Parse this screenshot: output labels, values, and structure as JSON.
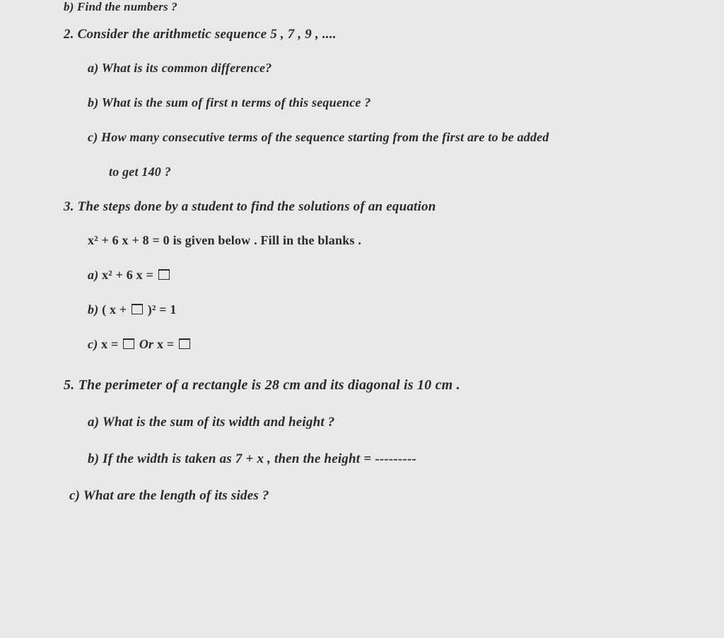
{
  "font_color": "#2a2a2a",
  "background_color": "#e8e8e8",
  "truncated_top": "b) Find the numbers ?",
  "q2": {
    "stem": "2. Consider the arithmetic sequence   5 , 7 , 9 , ....",
    "a": "a) What is its common difference?",
    "b": "b) What is the sum of first   n   terms of this sequence  ?",
    "c": "c) How many consecutive terms of the sequence  starting from the first  are to be added",
    "c_cont": "to get     140   ?"
  },
  "q3": {
    "stem": "3. The steps  done by a student to find the solutions of an equation",
    "eqn": "x² + 6 x + 8 = 0   is given below  . Fill in  the blanks .",
    "a_label": "a)   ",
    "a_expr_left": "x² + 6 x = ",
    "b_label": "b)    ",
    "b_expr_left": "( x + ",
    "b_expr_right": " )² = 1",
    "c_label": "c)   ",
    "c_x_eq": "x = ",
    "c_or": "    Or    "
  },
  "q5": {
    "stem": "5. The perimeter of a rectangle is  28 cm and its diagonal is 10 cm  .",
    "a": "a) What is the sum of its width and height ?",
    "b_left": "b)  If the width is taken as   7 + x    , then the height  = ",
    "b_blank": "---------",
    "c": "c)  What are the length of its sides ?"
  }
}
